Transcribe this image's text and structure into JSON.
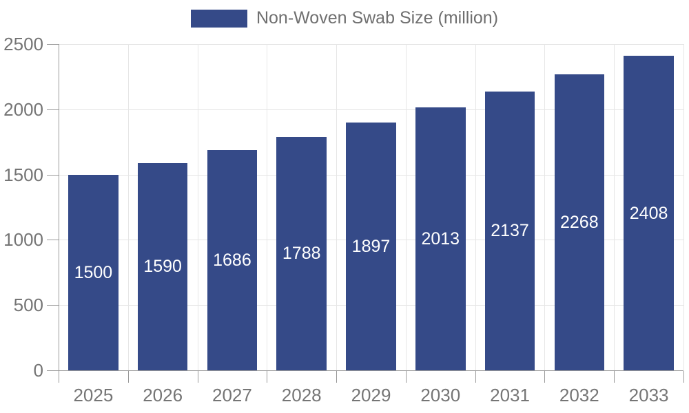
{
  "chart_data": {
    "type": "bar",
    "title": "",
    "xlabel": "",
    "ylabel": "",
    "categories": [
      "2025",
      "2026",
      "2027",
      "2028",
      "2029",
      "2030",
      "2031",
      "2032",
      "2033"
    ],
    "values": [
      1500,
      1590,
      1686,
      1788,
      1897,
      2013,
      2137,
      2268,
      2408
    ],
    "series_name": "Non-Woven Swab Size (million)",
    "ylim": [
      0,
      2500
    ],
    "yticks": [
      0,
      500,
      1000,
      1500,
      2000,
      2500
    ],
    "grid": true,
    "legend_position": "top-center",
    "bar_color": "#354a88",
    "bar_label_color": "#ffffff",
    "axis_text_color": "#757575",
    "legend_text_color": "#6f6f6f",
    "background": "#ffffff"
  },
  "legend": {
    "label": "Non-Woven Swab Size (million)"
  }
}
